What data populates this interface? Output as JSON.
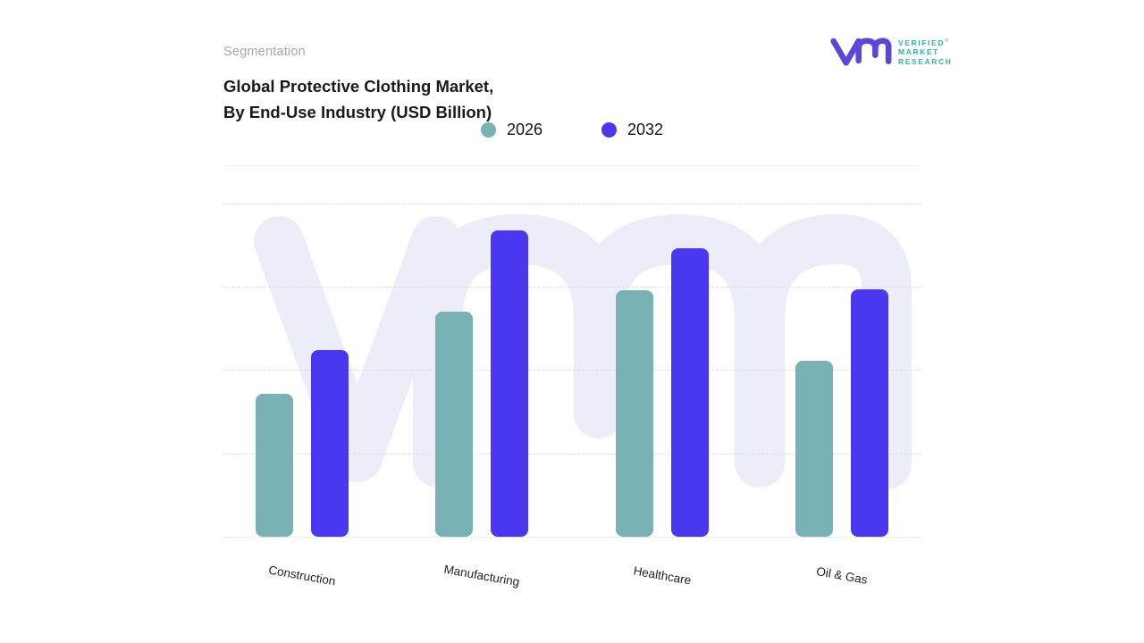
{
  "header": {
    "eyebrow": "Segmentation",
    "title_line1": "Global Protective Clothing Market,",
    "title_line2": "By End-Use Industry (USD Billion)"
  },
  "logo": {
    "line1": "VERIFIED",
    "line2": "MARKET",
    "line3": "RESEARCH",
    "registered_mark": "®",
    "mark_color": "#5848d8",
    "text_color": "#2fb3a5"
  },
  "legend": [
    {
      "label": "2026",
      "color": "#78B2B4"
    },
    {
      "label": "2032",
      "color": "#4A37F0"
    }
  ],
  "chart_data": {
    "type": "bar",
    "title": "Global Protective Clothing Market, By End-Use Industry (USD Billion)",
    "categories": [
      "Construction",
      "Manufacturing",
      "Healthcare",
      "Oil & Gas"
    ],
    "series": [
      {
        "name": "2026",
        "color": "#78B2B4",
        "values": [
          17.2,
          27.0,
          29.6,
          21.1
        ]
      },
      {
        "name": "2032",
        "color": "#4A37F0",
        "values": [
          22.4,
          36.8,
          34.6,
          29.7
        ]
      }
    ],
    "xlabel": "",
    "ylabel": "",
    "ylim": [
      0,
      40
    ],
    "y_axis_labeled": false,
    "values_estimated_from_gridlines": true,
    "gridlines": "horizontal-dashed",
    "legend_position": "top-center"
  },
  "colors": {
    "bar_2026": "#78B2B4",
    "bar_2032": "#4A37F0",
    "watermark": "#ECEDF8",
    "gridline": "#dedede",
    "baseline": "#e7e7e7",
    "title_text": "#1a1a1a",
    "eyebrow_text": "#a6a6a6"
  }
}
